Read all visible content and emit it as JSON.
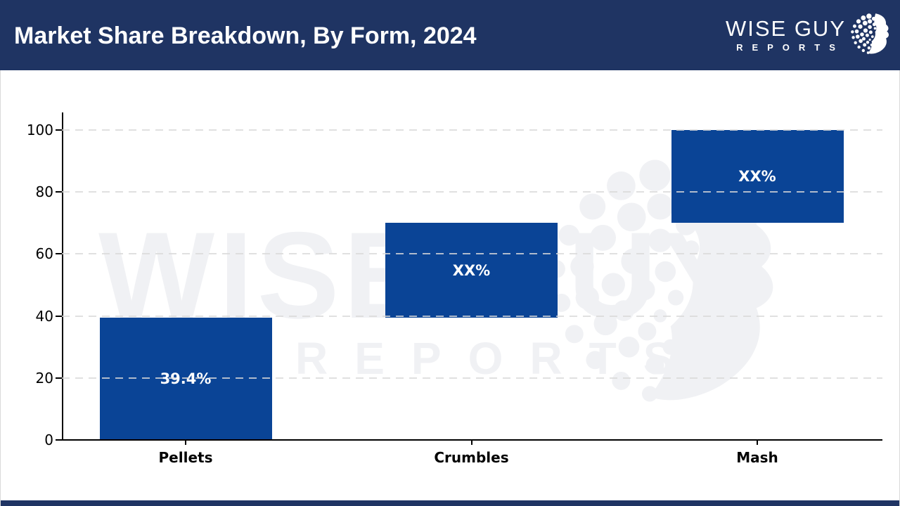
{
  "header": {
    "title": "Market Share Breakdown, By Form, 2024",
    "background_color": "#1f3463",
    "logo": {
      "line1": "WISE GUY",
      "line2": "REPORTS",
      "face_icon": "dotted-head-profile",
      "color": "#ffffff"
    }
  },
  "watermark": {
    "line1": "WISE GUY",
    "line2": "REPORTS",
    "color": "#f0f1f4"
  },
  "chart_data": {
    "type": "bar",
    "subtype": "floating-waterfall",
    "title": "Market Share Breakdown, By Form, 2024",
    "categories": [
      "Pellets",
      "Crumbles",
      "Mash"
    ],
    "segments": [
      {
        "category": "Pellets",
        "start": 0,
        "end": 39.4,
        "label": "39.4%"
      },
      {
        "category": "Crumbles",
        "start": 39.4,
        "end": 70,
        "label": "XX%"
      },
      {
        "category": "Mash",
        "start": 70,
        "end": 100,
        "label": "XX%"
      }
    ],
    "ylim": [
      0,
      100
    ],
    "yticks": [
      0,
      20,
      40,
      60,
      80,
      100
    ],
    "grid": "horizontal-dashed",
    "legend": "none",
    "bar_color": "#0a4496",
    "bar_label_color": "#ffffff",
    "axis_color": "#000000",
    "gridline_color": "#d9d9d9"
  },
  "footer": {
    "background_color": "#1f3463"
  }
}
